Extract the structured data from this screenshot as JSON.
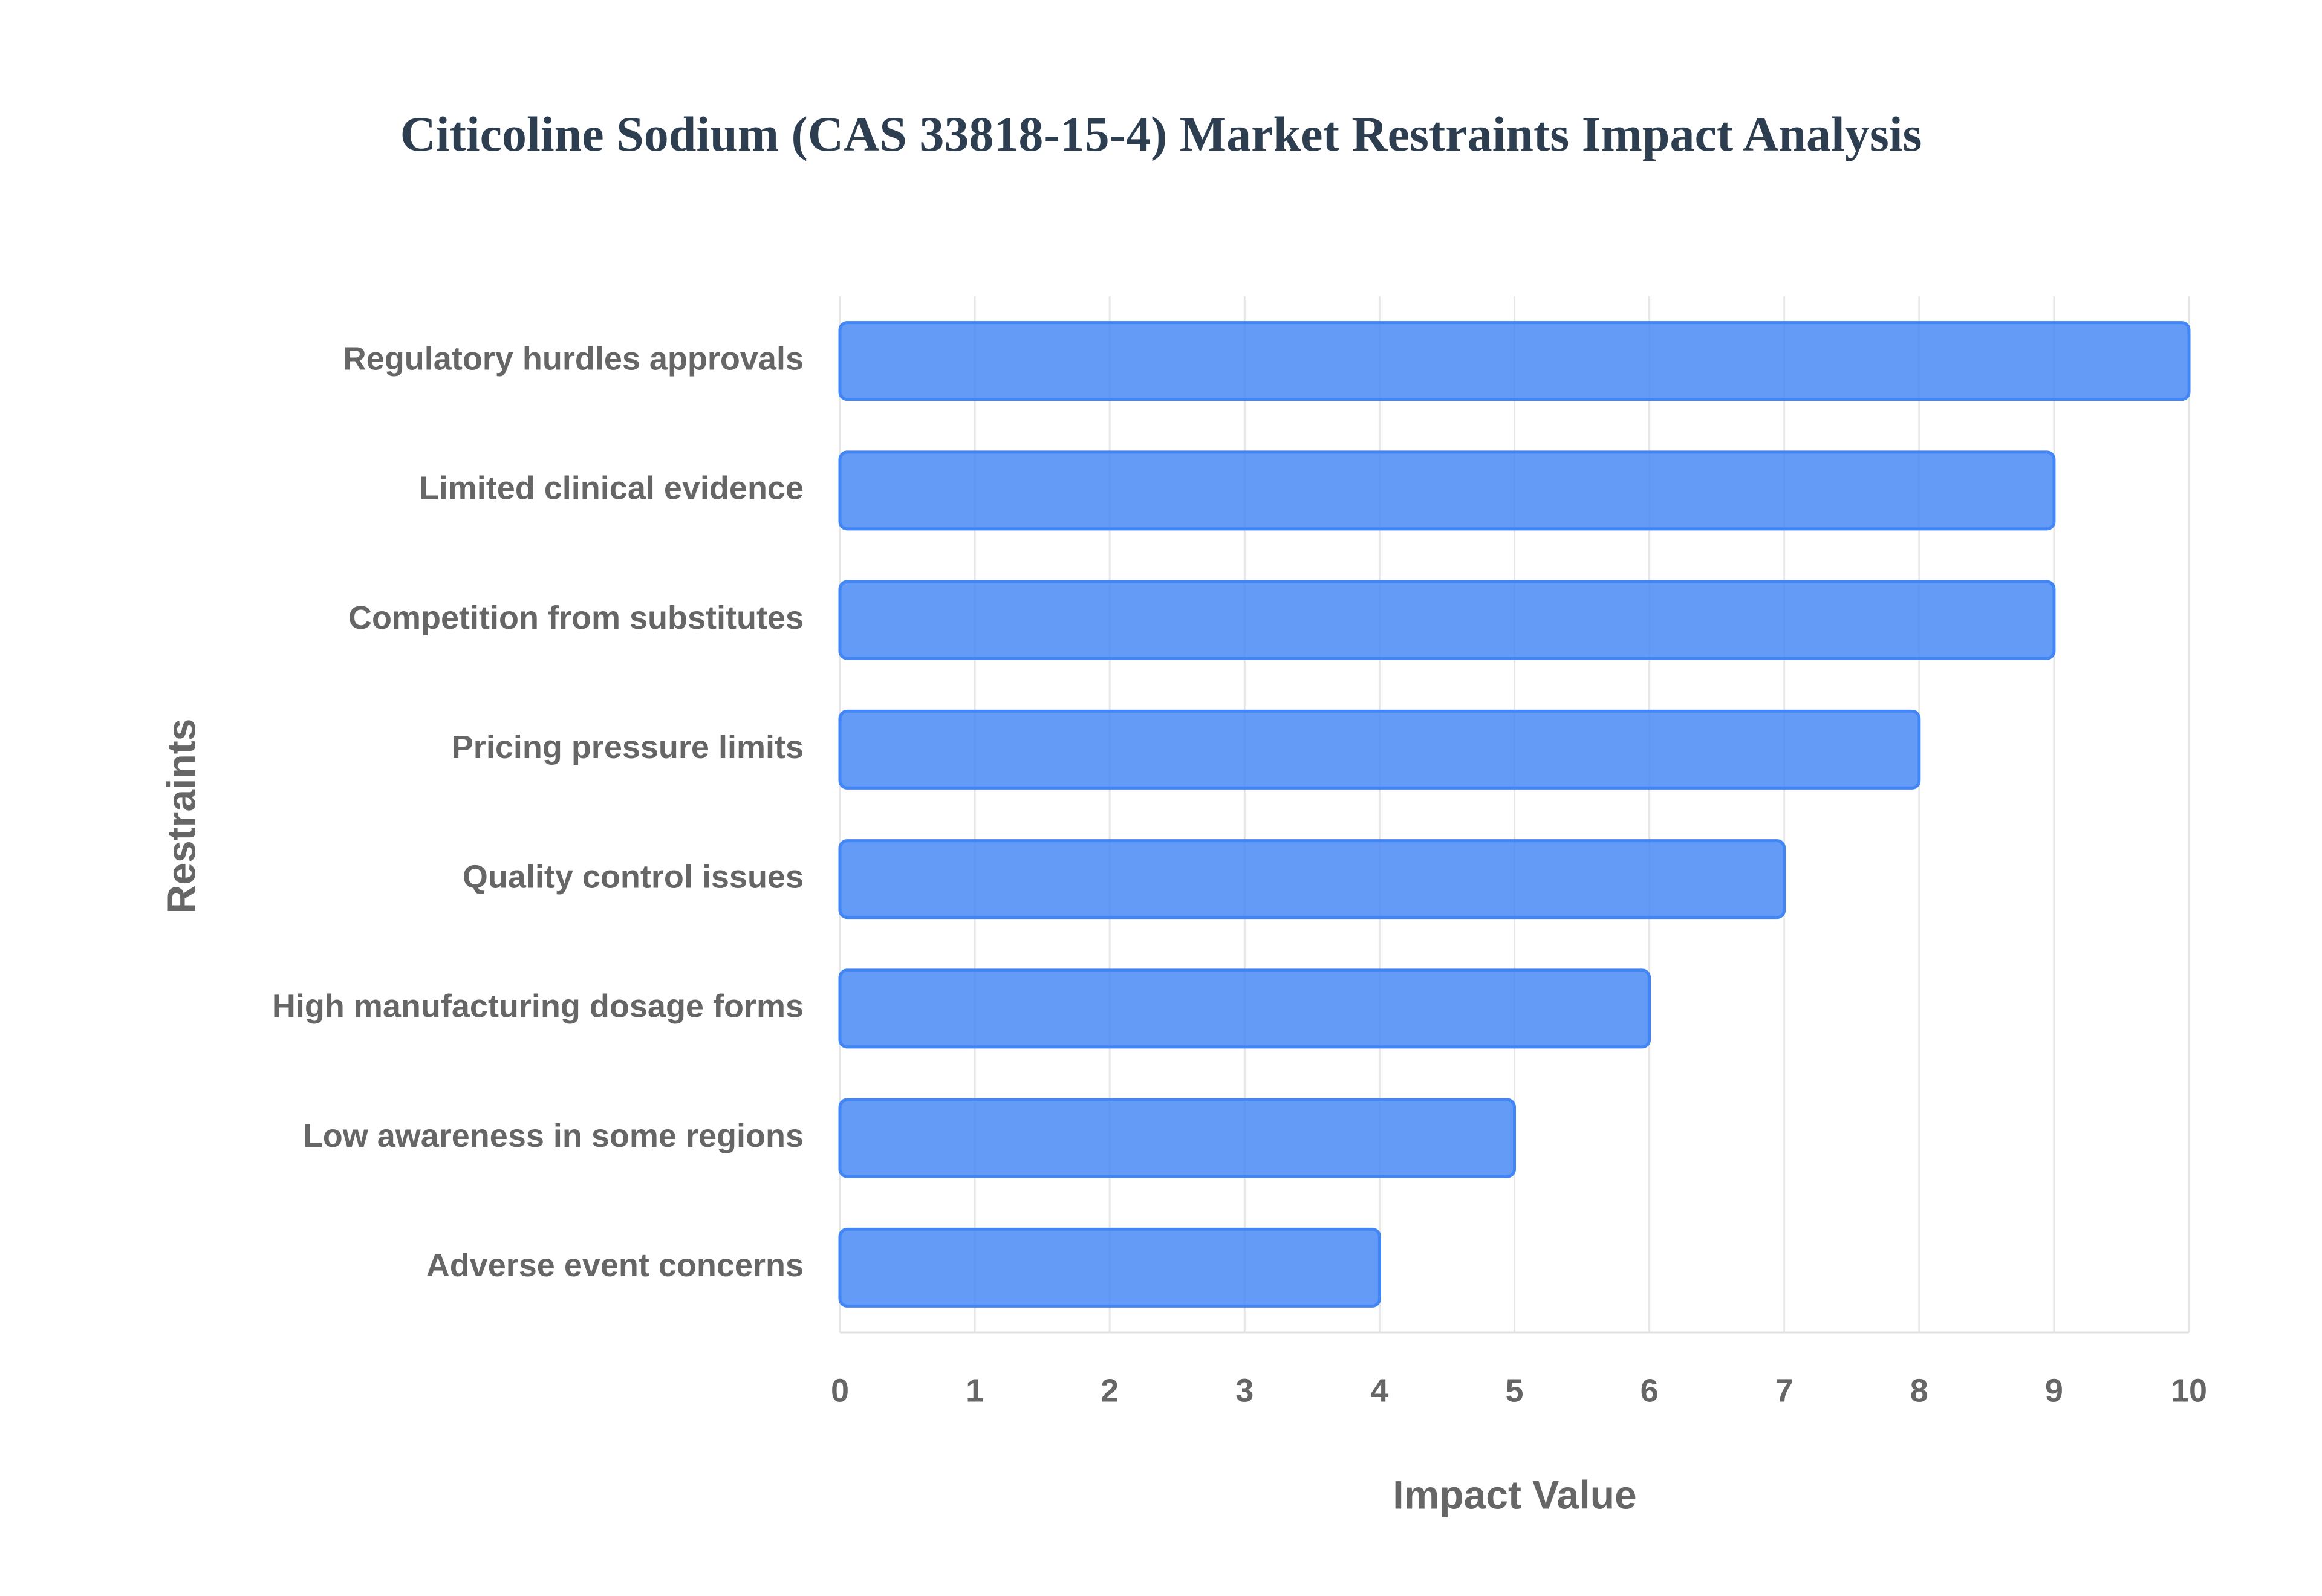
{
  "chart_data": {
    "type": "bar",
    "orientation": "horizontal",
    "title": "Citicoline Sodium (CAS 33818-15-4) Market Restraints Impact Analysis",
    "x_label": "Impact Value",
    "y_label": "Restraints",
    "categories": [
      "Regulatory hurdles approvals",
      "Limited clinical evidence",
      "Competition from substitutes",
      "Pricing pressure limits",
      "Quality control issues",
      "High manufacturing dosage forms",
      "Low awareness in some regions",
      "Adverse event concerns"
    ],
    "values": [
      10,
      9,
      9,
      8,
      7,
      6,
      5,
      4
    ],
    "color": "#4285f4",
    "xlim": [
      0,
      10
    ],
    "xticks": [
      0,
      1,
      2,
      3,
      4,
      5,
      6,
      7,
      8,
      9,
      10
    ],
    "grid": true
  }
}
